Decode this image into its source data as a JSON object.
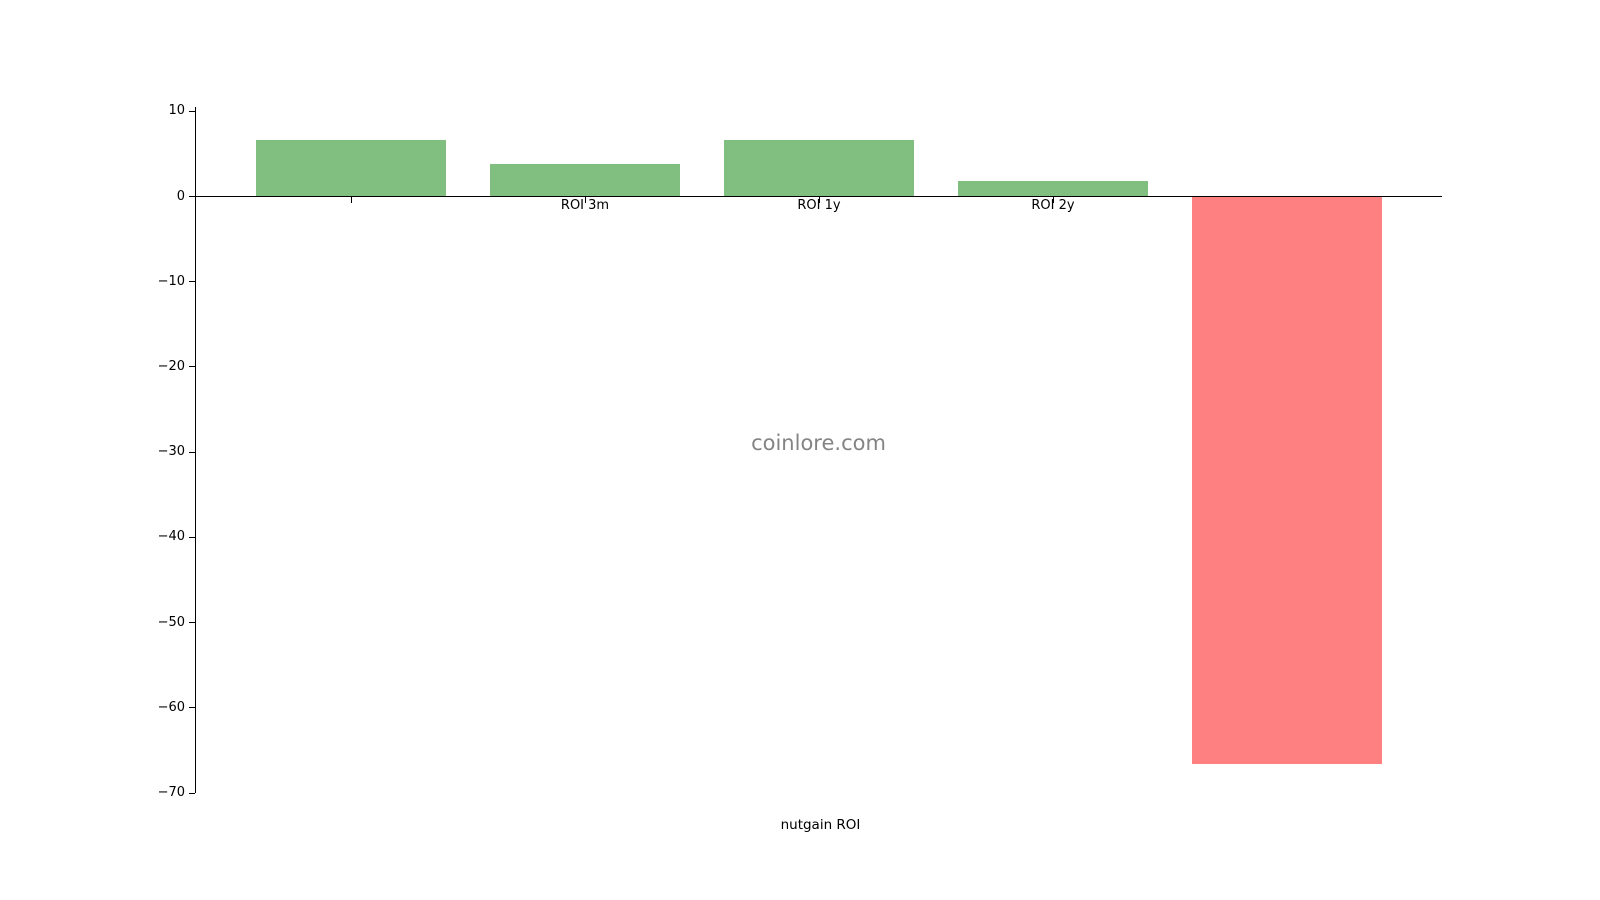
{
  "figure": {
    "watermark": "coinlore.com",
    "background": "#ffffff"
  },
  "chart_data": {
    "type": "bar",
    "title": "",
    "xlabel": "nutgain ROI",
    "ylabel": "",
    "categories": [
      "",
      "ROI 3m",
      "ROI 1y",
      "ROI 2y",
      ""
    ],
    "values": [
      6.6,
      3.8,
      6.6,
      1.8,
      -66.6
    ],
    "series": [
      {
        "name": "nutgain ROI",
        "values": [
          6.6,
          3.8,
          6.6,
          1.8,
          -66.6
        ]
      }
    ],
    "positive_color": "#80bf80",
    "negative_color": "#ff8080",
    "bar_colors": [
      "#80bf80",
      "#80bf80",
      "#80bf80",
      "#80bf80",
      "#ff8080"
    ],
    "x_ticks": [
      {
        "index": 0,
        "label": ""
      },
      {
        "index": 1,
        "label": "ROI 3m"
      },
      {
        "index": 2,
        "label": "ROI 1y"
      },
      {
        "index": 3,
        "label": "ROI 2y"
      }
    ],
    "y_ticks": [
      {
        "value": 10,
        "label": "10"
      },
      {
        "value": 0,
        "label": "0"
      },
      {
        "value": -10,
        "label": "−10"
      },
      {
        "value": -20,
        "label": "−20"
      },
      {
        "value": -30,
        "label": "−30"
      },
      {
        "value": -40,
        "label": "−40"
      },
      {
        "value": -50,
        "label": "−50"
      },
      {
        "value": -60,
        "label": "−60"
      },
      {
        "value": -70,
        "label": "−70"
      },
      {
        "value": -70,
        "label": ""
      }
    ],
    "ylim": [
      -70.5,
      10.5
    ],
    "grid": false,
    "legend": null,
    "axis_color": "#000000",
    "watermark_color": "#848484",
    "annotations": [
      "coinlore.com"
    ]
  }
}
